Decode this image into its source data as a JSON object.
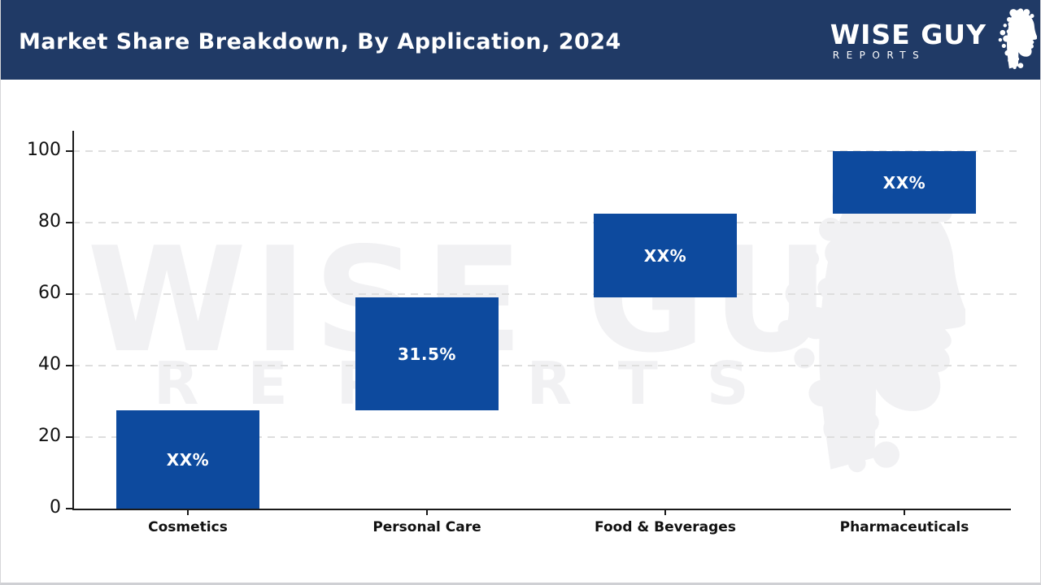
{
  "header": {
    "title": "Market Share Breakdown, By Application, 2024",
    "logo": {
      "line1": "WISE GUY",
      "line2": "REPORTS"
    }
  },
  "watermark": {
    "line1": "WISE GUY",
    "line2": "REPORTS"
  },
  "colors": {
    "header_bg": "#203a66",
    "bar": "#0d4a9e",
    "axis": "#1a1a1a",
    "grid": "#dedede",
    "bar_label": "#ffffff",
    "watermark": "#f1f1f3"
  },
  "chart_data": {
    "type": "bar",
    "subtype": "waterfall",
    "title": "Market Share Breakdown, By Application, 2024",
    "categories": [
      "Cosmetics",
      "Personal Care",
      "Food & Beverages",
      "Pharmaceuticals"
    ],
    "series": [
      {
        "name": "Market share (%)",
        "base": [
          0,
          27.5,
          59,
          82.5
        ],
        "values": [
          27.5,
          31.5,
          23.5,
          17.5
        ]
      }
    ],
    "bar_labels": [
      "XX%",
      "31.5%",
      "XX%",
      "XX%"
    ],
    "xlabel": "",
    "ylabel": "",
    "ylim": [
      0,
      100
    ],
    "yticks": [
      0,
      20,
      40,
      60,
      80,
      100
    ],
    "grid": "horizontal-dashed",
    "legend": "none"
  }
}
